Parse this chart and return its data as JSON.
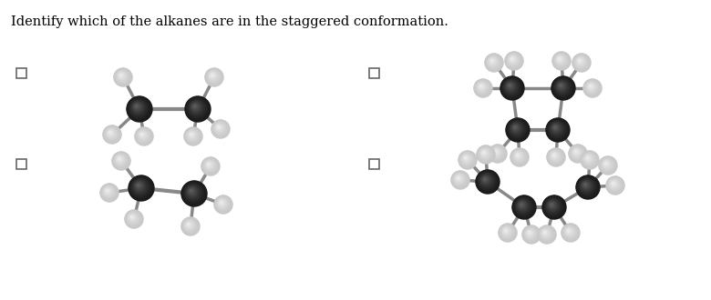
{
  "title": "Identify which of the alkanes are in the staggered conformation.",
  "title_fontsize": 10.5,
  "bg_color": "#ffffff",
  "carbon_color": "#1a1a1a",
  "carbon_highlight": "#606060",
  "hydrogen_color": "#c8c8c8",
  "hydrogen_highlight": "#eeeeee",
  "bond_color": "#888888",
  "bond_lw": 2.5
}
